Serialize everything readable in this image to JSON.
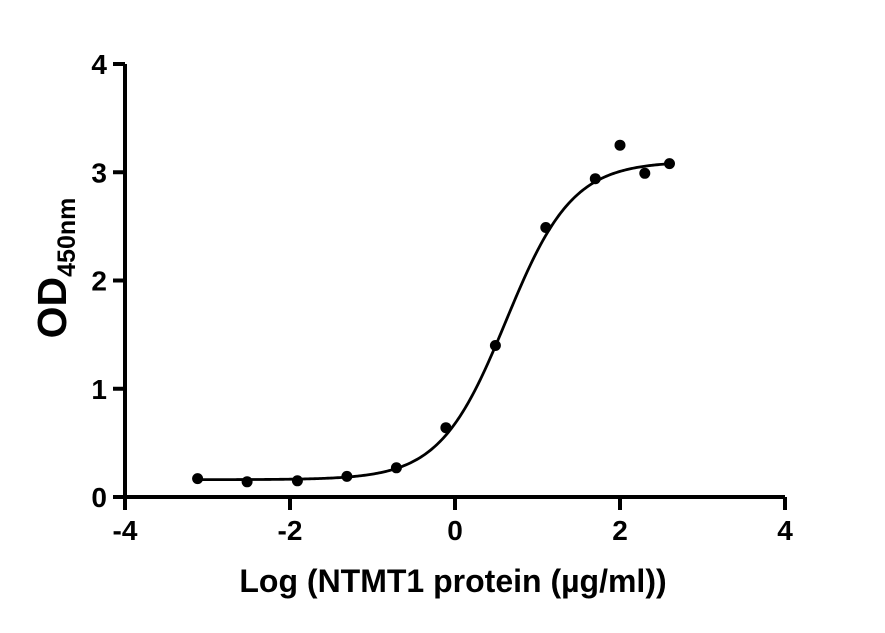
{
  "figure": {
    "background_color": "#ffffff",
    "ink_color": "#000000",
    "title": ""
  },
  "chart_data": {
    "type": "scatter",
    "subtype": "dose-response-sigmoid-fit",
    "title": "",
    "xlabel": "Log (NTMT1 protein (µg/ml))",
    "ylabel_main": "OD",
    "ylabel_sub": "450nm",
    "xlim": [
      -4,
      4
    ],
    "ylim": [
      0,
      4
    ],
    "xticks": [
      -4,
      -2,
      0,
      2,
      4
    ],
    "yticks": [
      0,
      1,
      2,
      3,
      4
    ],
    "grid": false,
    "legend_position": "none",
    "marker": "filled-circle",
    "points": [
      {
        "x": -3.12,
        "y": 0.17
      },
      {
        "x": -2.52,
        "y": 0.14
      },
      {
        "x": -1.91,
        "y": 0.15
      },
      {
        "x": -1.31,
        "y": 0.19
      },
      {
        "x": -0.71,
        "y": 0.27
      },
      {
        "x": -0.11,
        "y": 0.64
      },
      {
        "x": 0.49,
        "y": 1.4
      },
      {
        "x": 1.1,
        "y": 2.49
      },
      {
        "x": 1.7,
        "y": 2.94
      },
      {
        "x": 2.0,
        "y": 3.25
      },
      {
        "x": 2.3,
        "y": 2.99
      },
      {
        "x": 2.6,
        "y": 3.08
      }
    ],
    "fit_curve": {
      "model": "four_parameter_logistic",
      "bottom": 0.16,
      "top": 3.1,
      "log_ec50": 0.62,
      "hill_slope": 1.08,
      "x_range": [
        -3.12,
        2.63
      ]
    }
  }
}
